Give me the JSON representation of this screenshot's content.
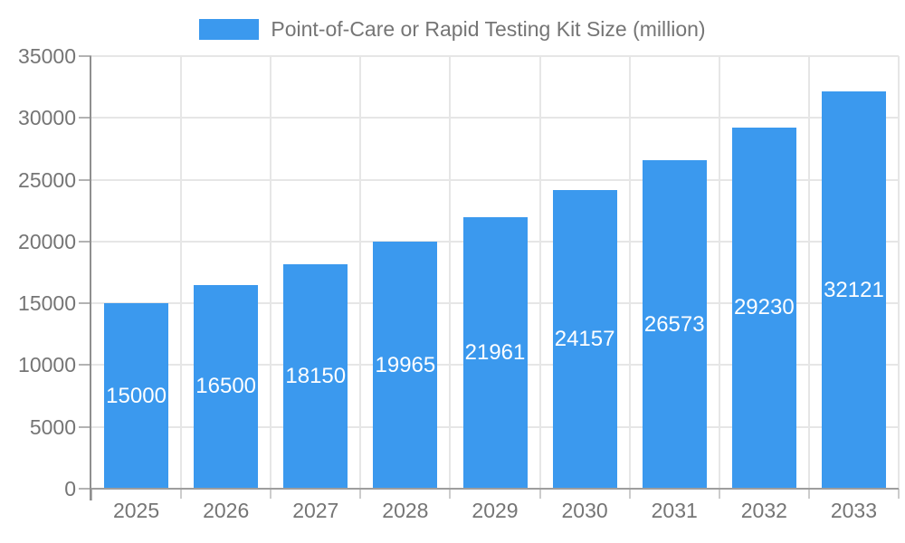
{
  "chart_data": {
    "type": "bar",
    "title": "",
    "legend_label": "Point-of-Care or Rapid Testing Kit Size (million)",
    "legend_position": "top",
    "categories": [
      "2025",
      "2026",
      "2027",
      "2028",
      "2029",
      "2030",
      "2031",
      "2032",
      "2033"
    ],
    "values": [
      15000,
      16500,
      18150,
      19965,
      21961,
      24157,
      26573,
      29230,
      32121
    ],
    "xlabel": "",
    "ylabel": "",
    "ylim": [
      0,
      35000
    ],
    "yticks": [
      0,
      5000,
      10000,
      15000,
      20000,
      25000,
      30000,
      35000
    ],
    "grid": true,
    "colors": {
      "bar": "#3b99ee",
      "bar_label_text": "#ffffff",
      "axis_text": "#757575",
      "gridline": "#e6e6e6",
      "axis_line": "#8f8f8f",
      "x_axis_line": "#9e9e9e",
      "tick": "#cccccc",
      "tick_stub": "#b3b3b3",
      "background": "#ffffff"
    }
  }
}
